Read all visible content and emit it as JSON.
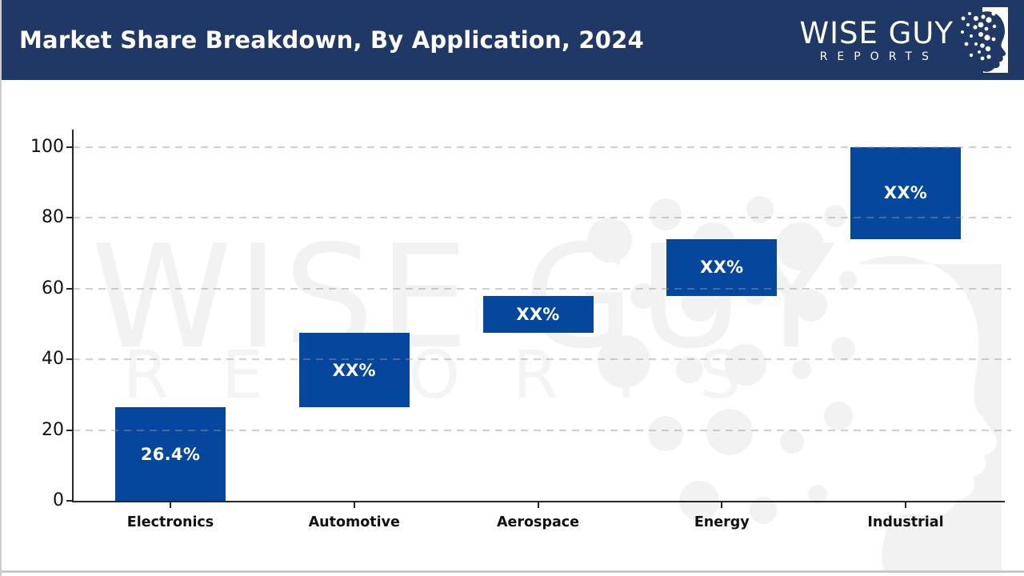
{
  "header": {
    "title": "Market Share Breakdown, By Application, 2024",
    "logo": {
      "wordmark": "WISE GUY",
      "subtext": "REPORTS"
    }
  },
  "watermark": {
    "line1": "WISE GUY",
    "line2": "REPORTS"
  },
  "colors": {
    "header_bg": "#1f3865",
    "bar_blue": "#05479d",
    "watermark_gray": "#f2f2f2"
  },
  "chart_data": {
    "type": "bar",
    "subtype": "waterfall",
    "title": "Market Share Breakdown, By Application, 2024",
    "categories": [
      "Electronics",
      "Automotive",
      "Aerospace",
      "Energy",
      "Industrial"
    ],
    "segments": [
      {
        "category": "Electronics",
        "start": 0,
        "end": 26.4,
        "label": "26.4%"
      },
      {
        "category": "Automotive",
        "start": 26.4,
        "end": 47.5,
        "label": "XX%"
      },
      {
        "category": "Aerospace",
        "start": 47.5,
        "end": 58.0,
        "label": "XX%"
      },
      {
        "category": "Energy",
        "start": 58.0,
        "end": 74.0,
        "label": "XX%"
      },
      {
        "category": "Industrial",
        "start": 74.0,
        "end": 100.0,
        "label": "XX%"
      }
    ],
    "xlabel": "",
    "ylabel": "",
    "yticks": [
      0,
      20,
      40,
      60,
      80,
      100
    ],
    "ylim": [
      0,
      100
    ],
    "grid": "dashed-horizontal-gridlines",
    "legend": "none",
    "bar_color": "#05479d"
  }
}
